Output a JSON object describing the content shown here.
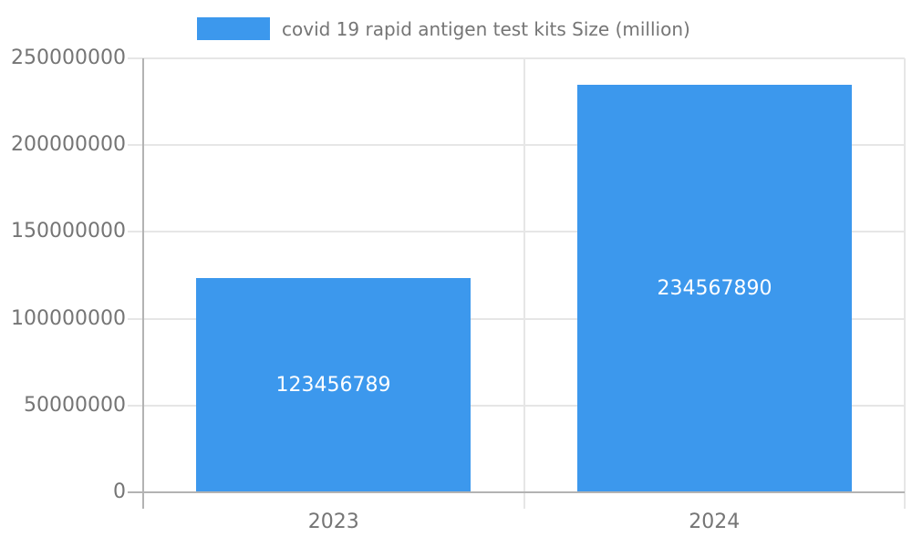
{
  "legend": {
    "label": "covid 19 rapid antigen test kits Size (million)"
  },
  "chart_data": {
    "type": "bar",
    "title": "covid 19 rapid antigen test kits Size (million)",
    "categories": [
      "2023",
      "2024"
    ],
    "series": [
      {
        "name": "covid 19 rapid antigen test kits Size (million)",
        "values": [
          123456789,
          234567890
        ]
      }
    ],
    "bar_labels": [
      "123456789",
      "234567890"
    ],
    "xlabel": "",
    "ylabel": "",
    "ylim": [
      0,
      250000000
    ],
    "ytick_step": 50000000,
    "yticks": [
      0,
      50000000,
      100000000,
      150000000,
      200000000,
      250000000
    ],
    "grid": true,
    "legend_position": "top",
    "bar_width_fraction": 0.72,
    "colors": {
      "bar": "#3c98ed",
      "bar_label": "#ffffff",
      "axis_text": "#757575",
      "grid_line": "#e6e6e6",
      "axis_line": "#b3b3b3",
      "background": "#ffffff"
    }
  }
}
